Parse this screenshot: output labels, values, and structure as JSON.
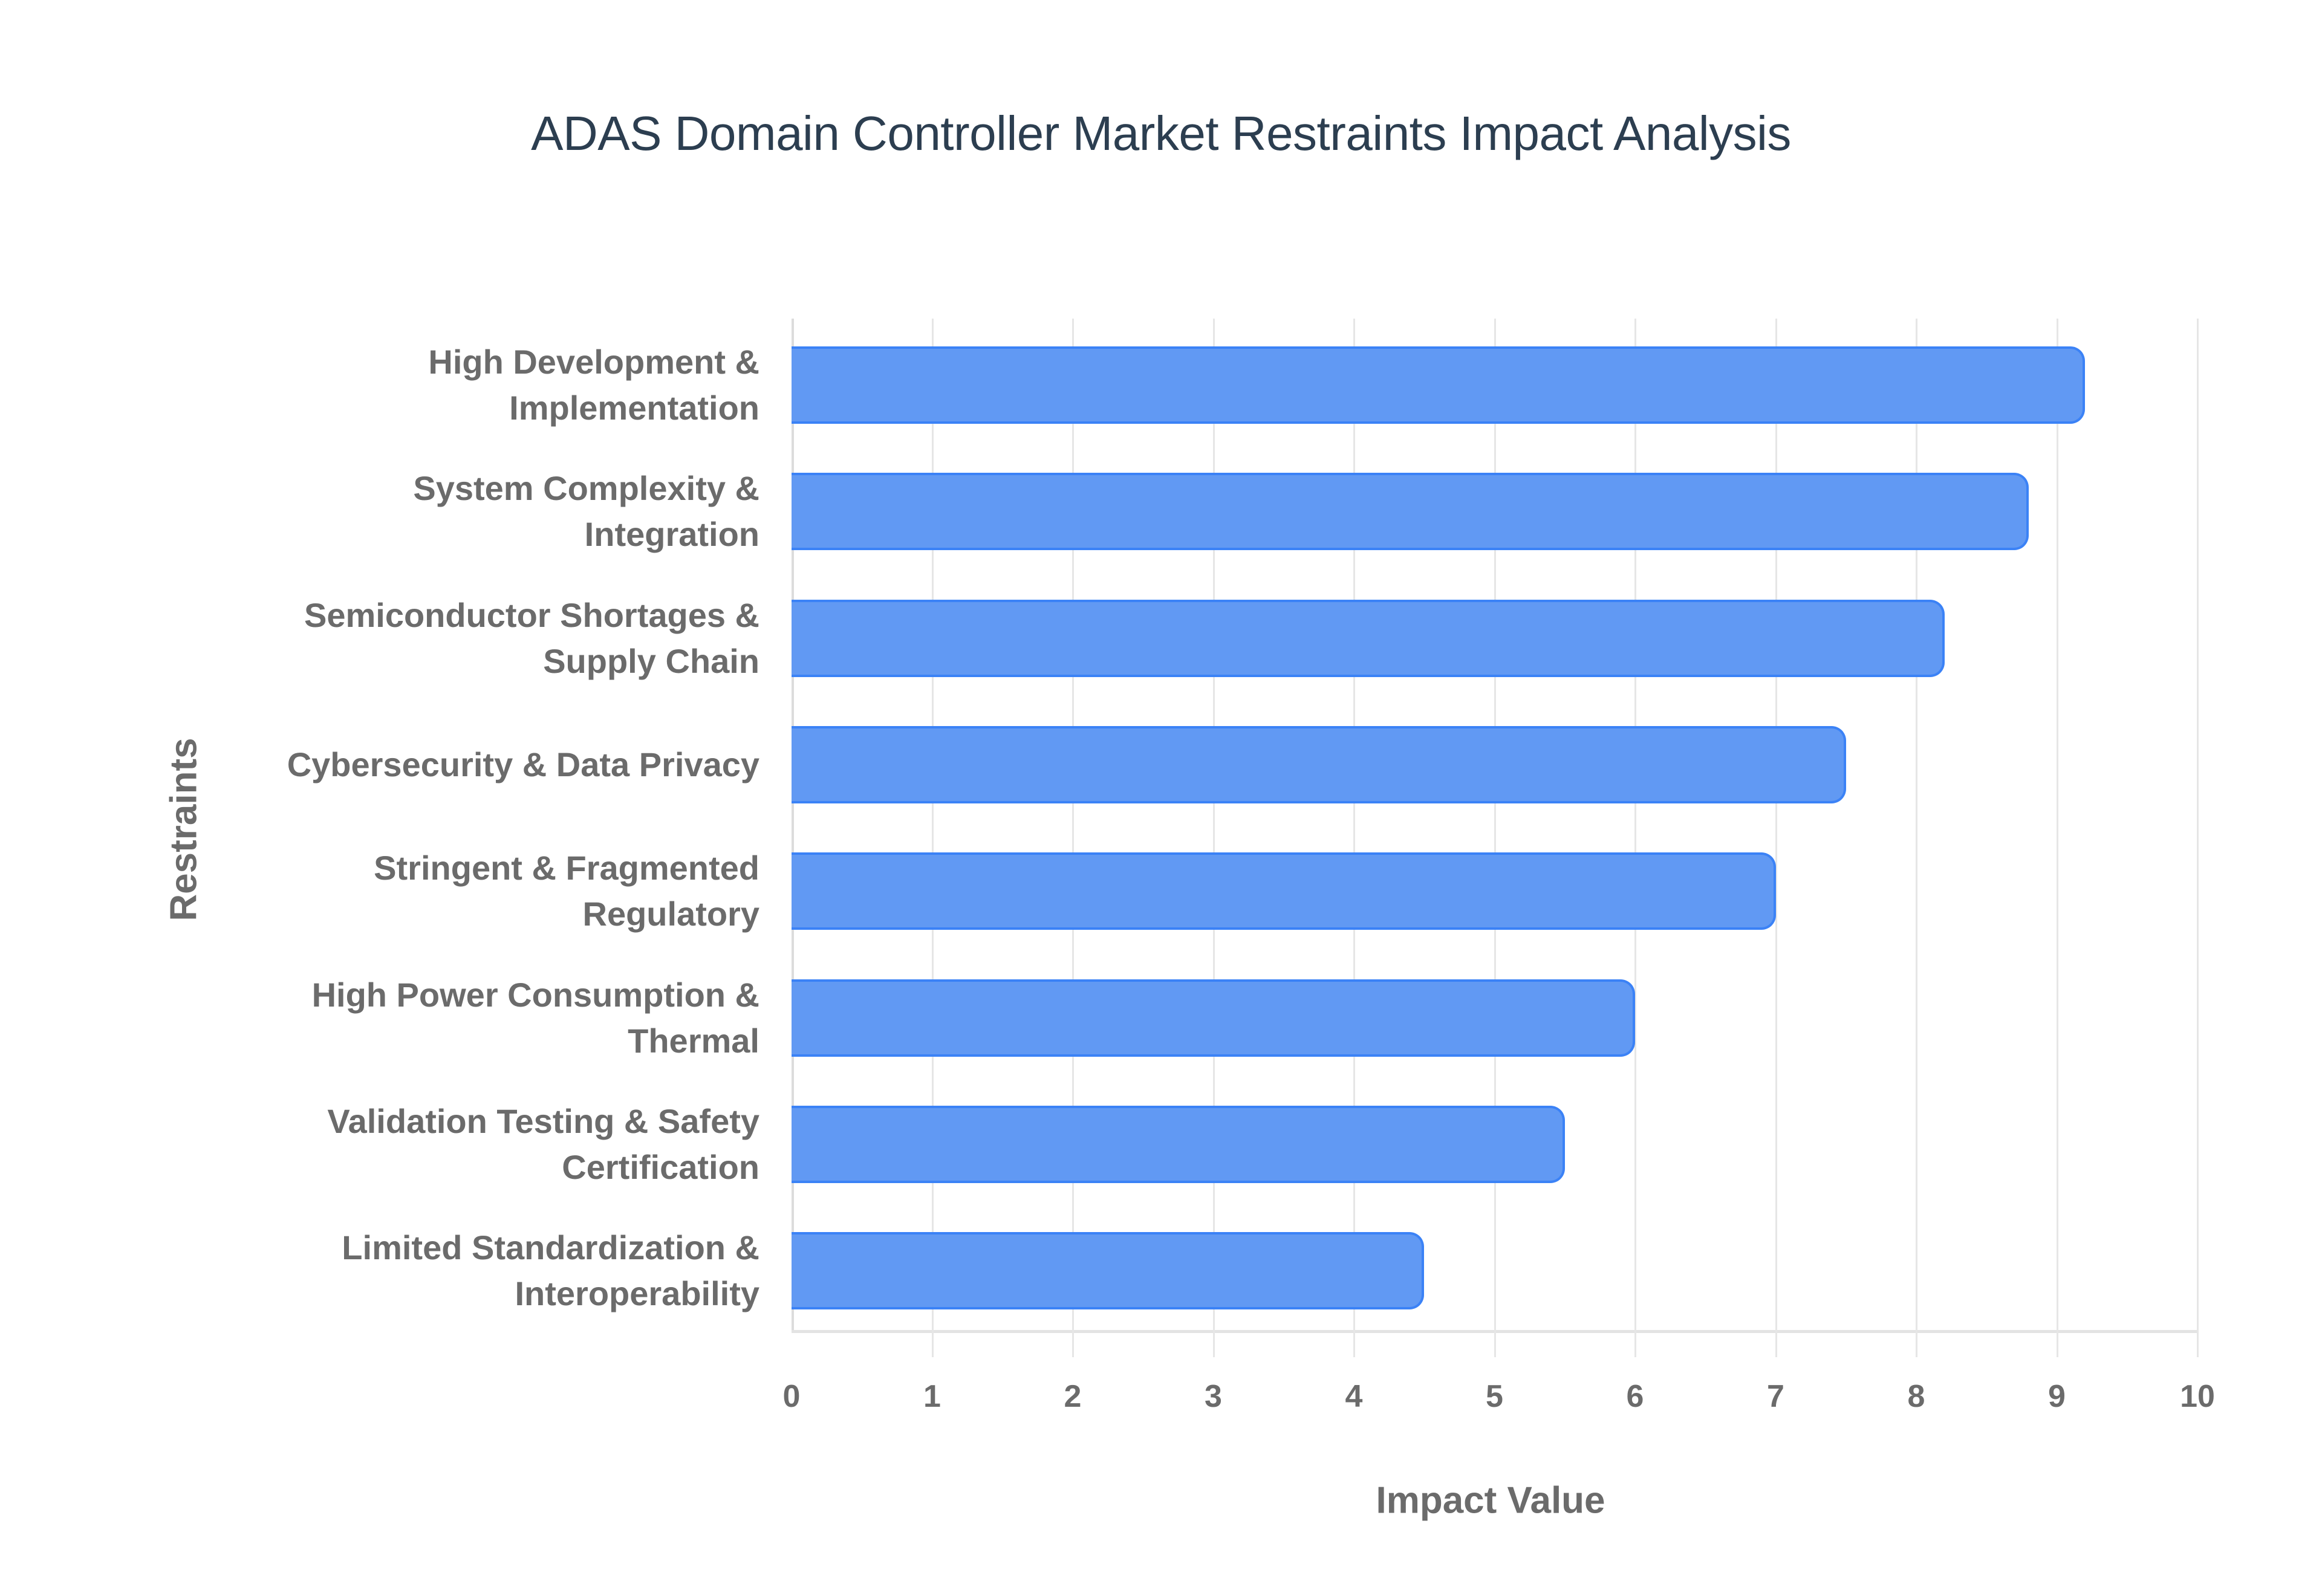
{
  "chart": {
    "title": "ADAS Domain Controller Market Restraints Impact Analysis",
    "xlabel": "Impact Value",
    "ylabel": "Restraints",
    "x_ticks": [
      "0",
      "1",
      "2",
      "3",
      "4",
      "5",
      "6",
      "7",
      "8",
      "9",
      "10"
    ],
    "bar_color": "#6199F3",
    "bar_border_color": "#3B82F6",
    "title_color": "#2C3E50",
    "label_color": "#6B6B6B"
  },
  "chart_data": {
    "type": "bar",
    "orientation": "horizontal",
    "title": "ADAS Domain Controller Market Restraints Impact Analysis",
    "xlabel": "Impact Value",
    "ylabel": "Restraints",
    "xlim": [
      0,
      10
    ],
    "grid": true,
    "legend": null,
    "categories": [
      "High Development & Implementation",
      "System Complexity & Integration",
      "Semiconductor Shortages & Supply Chain",
      "Cybersecurity & Data Privacy",
      "Stringent & Fragmented Regulatory",
      "High Power Consumption & Thermal",
      "Validation Testing & Safety Certification",
      "Limited Standardization & Interoperability"
    ],
    "category_lines": [
      [
        "High Development &",
        "Implementation"
      ],
      [
        "System Complexity &",
        "Integration"
      ],
      [
        "Semiconductor Shortages &",
        "Supply Chain"
      ],
      [
        "Cybersecurity & Data Privacy"
      ],
      [
        "Stringent & Fragmented",
        "Regulatory"
      ],
      [
        "High Power Consumption &",
        "Thermal"
      ],
      [
        "Validation Testing & Safety",
        "Certification"
      ],
      [
        "Limited Standardization &",
        "Interoperability"
      ]
    ],
    "values": [
      9.2,
      8.8,
      8.2,
      7.5,
      7.0,
      6.0,
      5.5,
      4.5
    ]
  }
}
